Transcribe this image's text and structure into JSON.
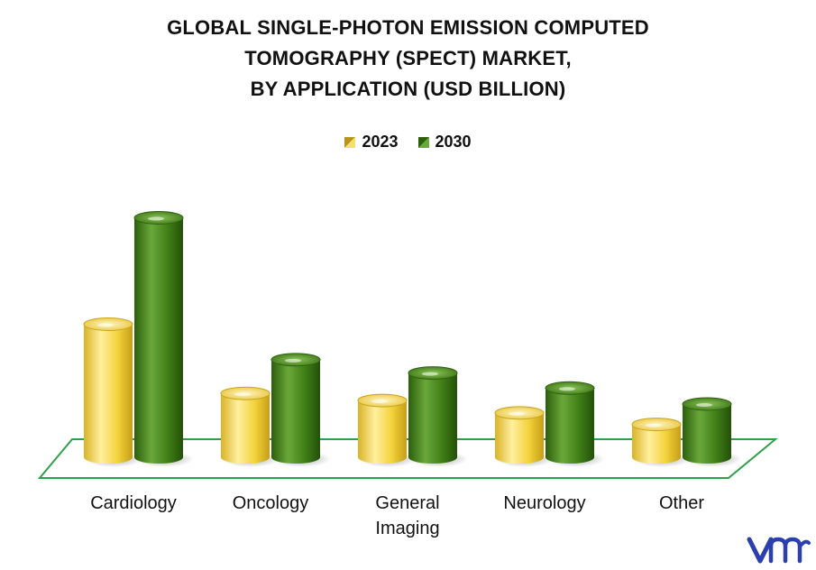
{
  "title_lines": [
    "GLOBAL SINGLE-PHOTON EMISSION COMPUTED",
    "TOMOGRAPHY (SPECT) MARKET,",
    "BY APPLICATION (USD BILLION)"
  ],
  "colors": {
    "series_2023": "#f2d23a",
    "series_2030": "#3f7d16",
    "floor_border": "#2f9f4a"
  },
  "chart_data": {
    "type": "bar",
    "title": "GLOBAL SINGLE-PHOTON EMISSION COMPUTED TOMOGRAPHY (SPECT) MARKET, BY APPLICATION (USD BILLION)",
    "categories": [
      "Cardiology",
      "Oncology",
      "General Imaging",
      "Neurology",
      "Other"
    ],
    "category_lines": [
      [
        "Cardiology"
      ],
      [
        "Oncology"
      ],
      [
        "General",
        "Imaging"
      ],
      [
        "Neurology"
      ],
      [
        "Other"
      ]
    ],
    "series": [
      {
        "name": "2023",
        "values": [
          1.5,
          0.72,
          0.64,
          0.5,
          0.37
        ]
      },
      {
        "name": "2030",
        "values": [
          2.7,
          1.1,
          0.95,
          0.78,
          0.6
        ]
      }
    ],
    "ylim": [
      0,
      3
    ],
    "legend_position": "top-center",
    "grid": false
  }
}
